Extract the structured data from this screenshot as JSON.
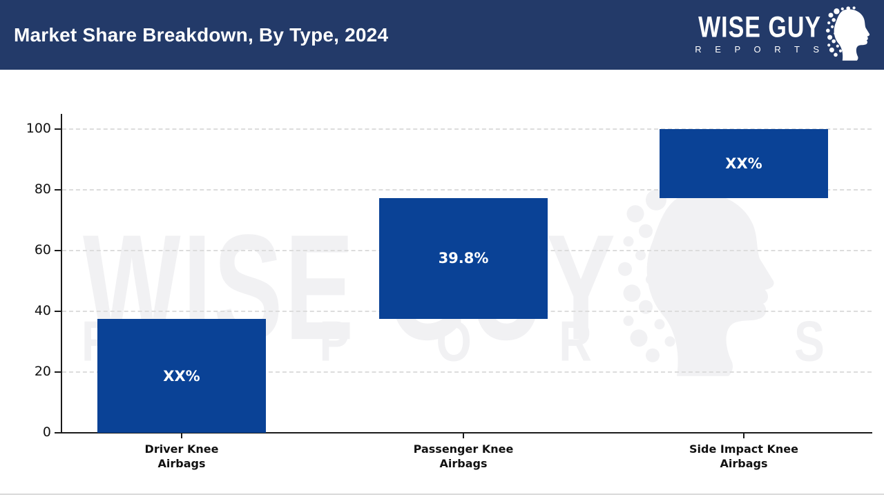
{
  "header": {
    "title": "Market Share Breakdown, By Type, 2024",
    "logo": {
      "line1": "WISE GUY",
      "line2": "R E P O R T S"
    }
  },
  "watermark": {
    "line1": "WISE GUY",
    "line2": "R E P O R T S"
  },
  "colors": {
    "header_bg": "#233a69",
    "bar": "#0a4296",
    "bar_label": "#ffffff",
    "gridline": "#dcdcdc",
    "watermark": "#f1f1f3"
  },
  "chart_data": {
    "type": "bar",
    "subtype": "waterfall",
    "title": "Market Share Breakdown, By Type, 2024",
    "categories": [
      "Driver Knee\nAirbags",
      "Passenger Knee\nAirbags",
      "Side Impact Knee\nAirbags"
    ],
    "series": [
      {
        "name": "Driver Knee Airbags",
        "start": 0,
        "end": 37.5,
        "value_label": "XX%"
      },
      {
        "name": "Passenger Knee Airbags",
        "start": 37.5,
        "end": 77.3,
        "value_label": "39.8%"
      },
      {
        "name": "Side Impact Knee Airbags",
        "start": 77.3,
        "end": 100,
        "value_label": "XX%"
      }
    ],
    "xlabel": "",
    "ylabel": "",
    "ylim": [
      0,
      100
    ],
    "yticks": [
      0,
      20,
      40,
      60,
      80,
      100
    ],
    "grid": "horizontal-dashed",
    "legend": "none"
  }
}
